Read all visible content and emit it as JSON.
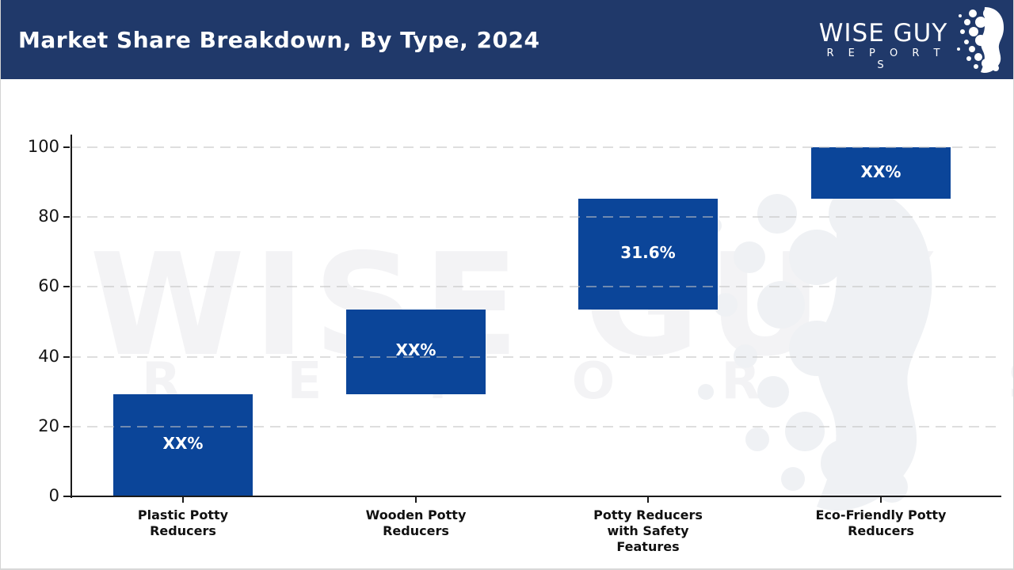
{
  "header": {
    "title": "Market Share Breakdown, By Type, 2024",
    "bg_color": "#20396a",
    "brand": {
      "name": "WISE GUY",
      "subname": "R E P O R T S"
    }
  },
  "watermark": {
    "line1": "WISE GUY",
    "line2": "R E P O R T S"
  },
  "chart_data": {
    "type": "waterfall",
    "title": "Market Share Breakdown, By Type, 2024",
    "categories": [
      "Plastic Potty\nReducers",
      "Wooden Potty\nReducers",
      "Potty Reducers\nwith Safety\nFeatures",
      "Eco-Friendly Potty\nReducers"
    ],
    "segments": [
      {
        "category": "Plastic Potty Reducers",
        "start": 0,
        "end": 29.3,
        "value": 29.3,
        "label": "XX%"
      },
      {
        "category": "Wooden Potty Reducers",
        "start": 29.3,
        "end": 53.6,
        "value": 24.3,
        "label": "XX%"
      },
      {
        "category": "Potty Reducers with Safety Features",
        "start": 53.6,
        "end": 85.2,
        "value": 31.6,
        "label": "31.6%"
      },
      {
        "category": "Eco-Friendly Potty Reducers",
        "start": 85.2,
        "end": 100,
        "value": 14.8,
        "label": "XX%"
      }
    ],
    "ylim": [
      0,
      100
    ],
    "yticks": [
      0,
      20,
      40,
      60,
      80,
      100
    ],
    "xlabel": "",
    "ylabel": "",
    "grid": "horizontal dashed, drawn over bars",
    "legend": "none",
    "bar_color": "#0b4599",
    "bar_label_color": "#ffffff",
    "axis_color": "#1a1a1a",
    "grid_color": "#dcdcdc"
  }
}
